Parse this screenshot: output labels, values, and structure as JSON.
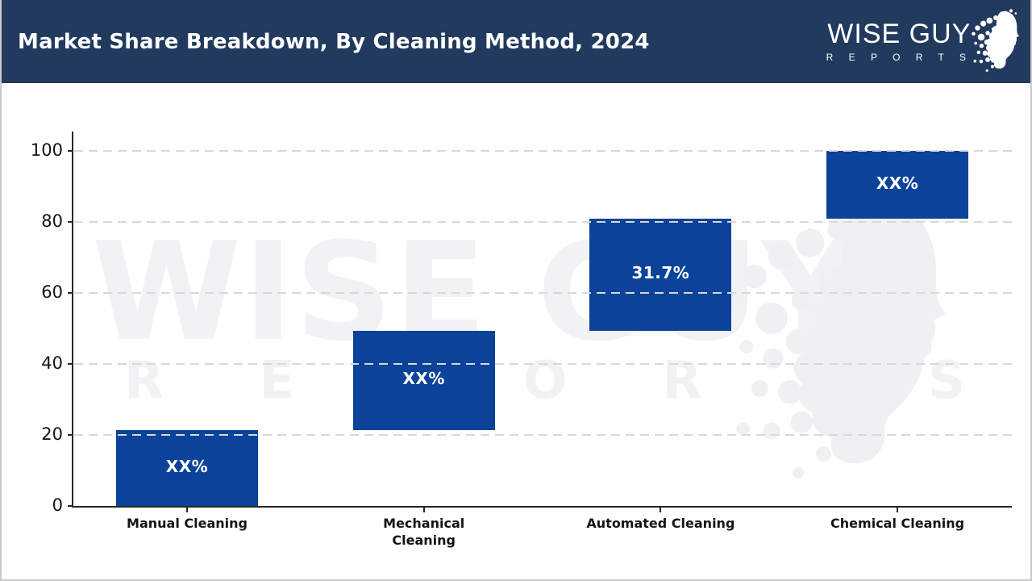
{
  "header": {
    "title": "Market Share Breakdown, By Cleaning Method, 2024",
    "logo": {
      "line1": "WISE GUY",
      "line2": "R E P O R T S"
    }
  },
  "watermark": {
    "line1": "WISE GUY",
    "line2": "R E P O R T S"
  },
  "colors": {
    "header_bg": "#213A5E",
    "bar": "#0A4399",
    "gridline": "#D8D8D8",
    "axis": "#262626",
    "watermark": "#F2F2F5"
  },
  "chart_data": {
    "type": "bar",
    "subtype": "waterfall",
    "title": "Market Share Breakdown, By Cleaning Method, 2024",
    "categories": [
      "Manual Cleaning",
      "Mechanical\nCleaning",
      "Automated Cleaning",
      "Chemical Cleaning"
    ],
    "segments": [
      {
        "category": "Manual Cleaning",
        "start": 0,
        "end": 21.4,
        "label": "XX%"
      },
      {
        "category": "Mechanical\nCleaning",
        "start": 21.4,
        "end": 49.3,
        "label": "XX%"
      },
      {
        "category": "Automated Cleaning",
        "start": 49.3,
        "end": 81.0,
        "label": "31.7%"
      },
      {
        "category": "Chemical Cleaning",
        "start": 81.0,
        "end": 100,
        "label": "XX%"
      }
    ],
    "ylim": [
      0,
      100
    ],
    "yticks": [
      0,
      20,
      40,
      60,
      80,
      100
    ],
    "grid": true,
    "legend": null
  }
}
